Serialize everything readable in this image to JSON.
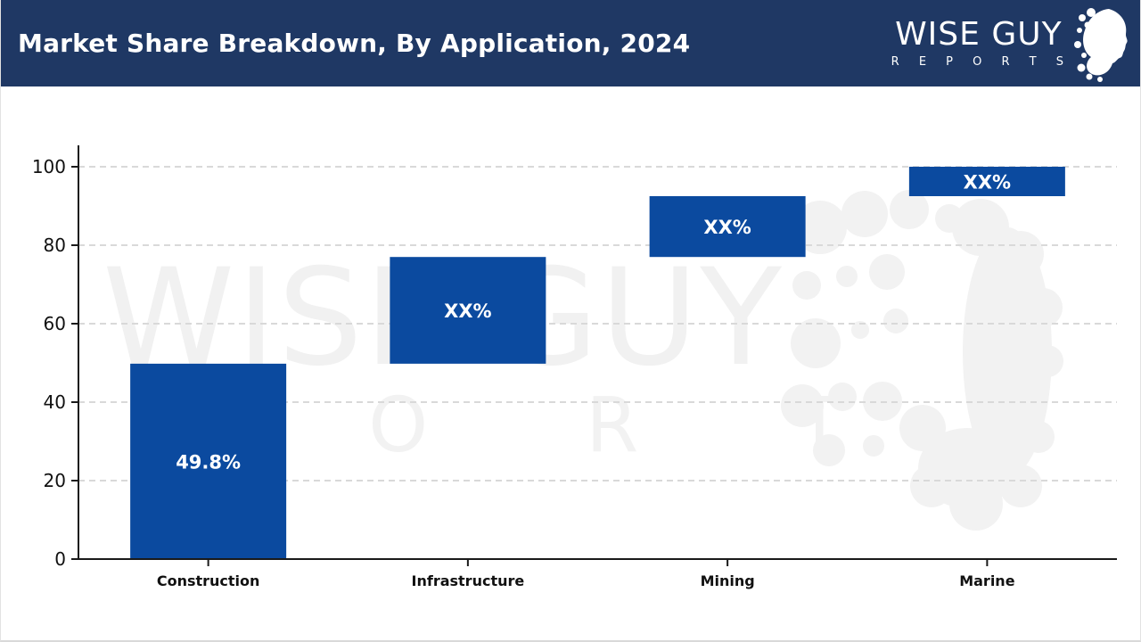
{
  "header": {
    "title": "Market Share Breakdown, By Application, 2024",
    "bg_color": "#1f3864",
    "logo": {
      "wordmark": "WISE GUY",
      "subtext": "R E P O R T S"
    }
  },
  "watermark": {
    "line1": "WISE GUY",
    "line2": "P O R T S"
  },
  "chart_data": {
    "type": "bar",
    "subtype": "waterfall",
    "title": "Market Share Breakdown, By Application, 2024",
    "categories": [
      "Construction",
      "Infrastructure",
      "Mining",
      "Marine"
    ],
    "segments": [
      {
        "category": "Construction",
        "start": 0,
        "end": 49.8,
        "label": "49.8%"
      },
      {
        "category": "Infrastructure",
        "start": 49.8,
        "end": 77.0,
        "label": "XX%"
      },
      {
        "category": "Mining",
        "start": 77.0,
        "end": 92.5,
        "label": "XX%"
      },
      {
        "category": "Marine",
        "start": 92.5,
        "end": 100,
        "label": "XX%"
      }
    ],
    "yticks": [
      0,
      20,
      40,
      60,
      80,
      100
    ],
    "ylim": [
      0,
      105
    ],
    "xlabel": "",
    "ylabel": "",
    "grid": "horizontal-dashed",
    "legend": "none",
    "bar_color": "#0b4a9f",
    "label_color": "#ffffff",
    "axis_color": "#1a1a1a",
    "grid_color": "#d9d9d9"
  }
}
